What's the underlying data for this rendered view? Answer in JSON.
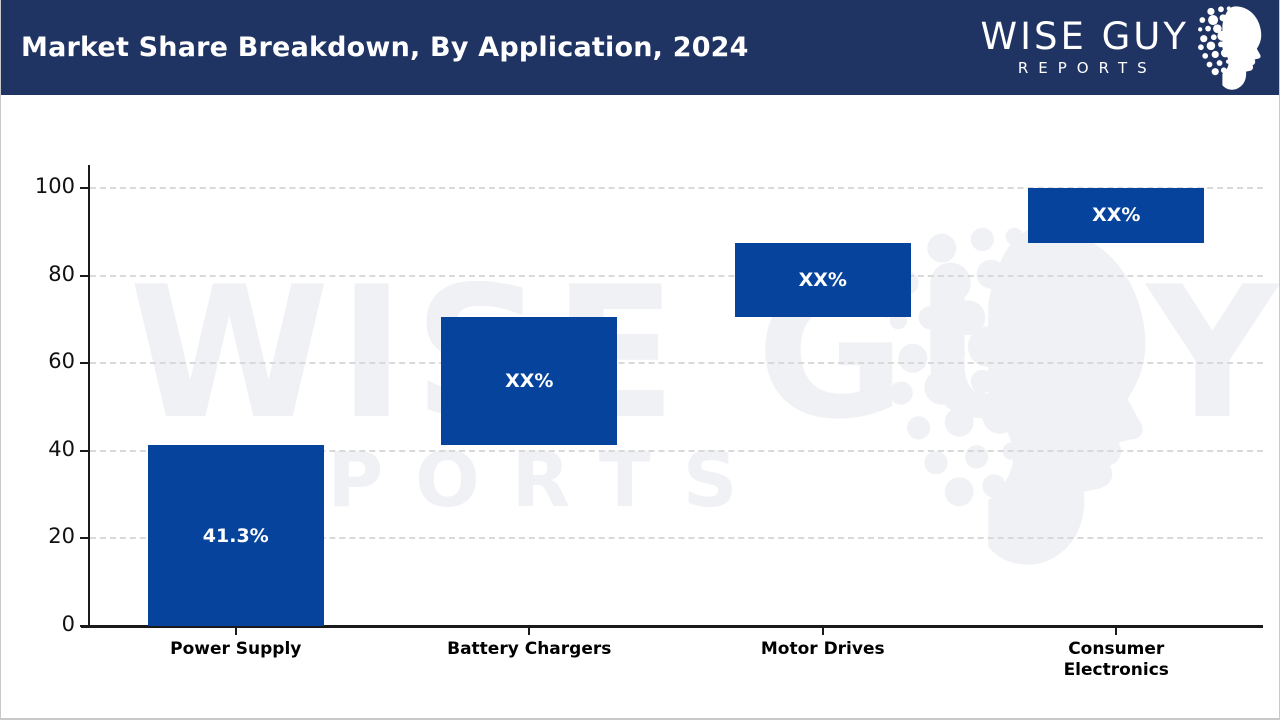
{
  "header": {
    "title": "Market Share Breakdown, By Application, 2024",
    "logo": {
      "name": "WISE GUY",
      "sub": "REPORTS"
    }
  },
  "watermark": {
    "line1": "WISE GU·Y",
    "line2": "REPORTS"
  },
  "chart_data": {
    "type": "bar",
    "subtype": "waterfall",
    "title": "Market Share Breakdown, By Application, 2024",
    "xlabel": "",
    "ylabel": "",
    "categories": [
      "Power Supply",
      "Battery Chargers",
      "Motor Drives",
      "Consumer Electronics"
    ],
    "segments": [
      {
        "category": "Power Supply",
        "start": 0,
        "end": 41.3,
        "label": "41.3%"
      },
      {
        "category": "Battery Chargers",
        "start": 41.3,
        "end": 70.6,
        "label": "XX%"
      },
      {
        "category": "Motor Drives",
        "start": 70.6,
        "end": 87.5,
        "label": "XX%"
      },
      {
        "category": "Consumer Electronics",
        "start": 87.5,
        "end": 100,
        "label": "XX%"
      }
    ],
    "yticks": [
      0,
      20,
      40,
      60,
      80,
      100
    ],
    "ylim": [
      0,
      105
    ],
    "grid": "horizontal-dashed",
    "legend": "none",
    "colors": {
      "bar": "#05439c",
      "bar_label": "#ffffff",
      "axis": "#1a1a1a",
      "gridline": "#d9d9d9",
      "header_bg": "#203463",
      "header_text": "#ffffff",
      "watermark": "#f0f1f4"
    }
  }
}
